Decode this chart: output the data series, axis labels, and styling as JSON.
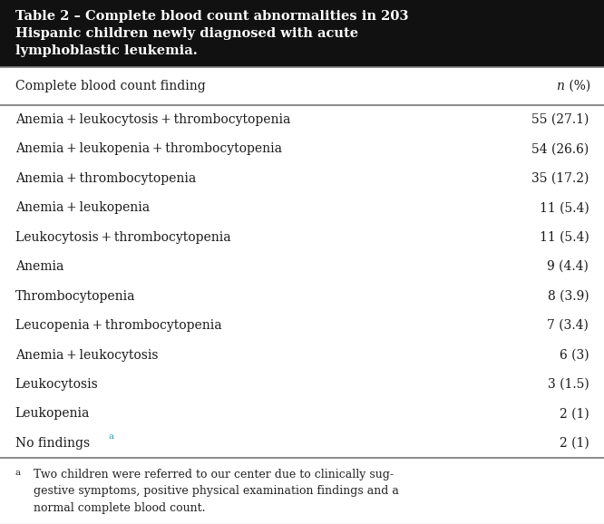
{
  "title_line1": "Table 2 – Complete blood count abnormalities in 203",
  "title_line2": "Hispanic children newly diagnosed with acute",
  "title_line3": "lymphoblastic leukemia.",
  "header_col1": "Complete blood count finding",
  "rows": [
    [
      "Anemia + leukocytosis + thrombocytopenia",
      "55 (27.1)"
    ],
    [
      "Anemia + leukopenia + thrombocytopenia",
      "54 (26.6)"
    ],
    [
      "Anemia + thrombocytopenia",
      "35 (17.2)"
    ],
    [
      "Anemia + leukopenia",
      "11 (5.4)"
    ],
    [
      "Leukocytosis + thrombocytopenia",
      "11 (5.4)"
    ],
    [
      "Anemia",
      "9 (4.4)"
    ],
    [
      "Thrombocytopenia",
      "8 (3.9)"
    ],
    [
      "Leucopenia + thrombocytopenia",
      "7 (3.4)"
    ],
    [
      "Anemia + leukocytosis",
      "6 (3)"
    ],
    [
      "Leukocytosis",
      "3 (1.5)"
    ],
    [
      "Leukopenia",
      "2 (1)"
    ],
    [
      "No findings",
      "2 (1)"
    ]
  ],
  "footnote_line1": "  Two children were referred to our center due to clinically sug-",
  "footnote_line2": "  gestive symptoms, positive physical examination findings and a",
  "footnote_line3": "  normal complete blood count.",
  "title_bg": "#111111",
  "title_color": "#ffffff",
  "body_bg": "#ffffff",
  "footnote_bg": "#ffffff",
  "line_color": "#777777",
  "text_color": "#1a1a1a",
  "footnote_text_color": "#222222",
  "superscript_color": "#3399aa",
  "title_fontsize": 10.5,
  "header_fontsize": 10,
  "body_fontsize": 10,
  "footnote_fontsize": 9,
  "figwidth": 6.66,
  "figheight": 5.78
}
